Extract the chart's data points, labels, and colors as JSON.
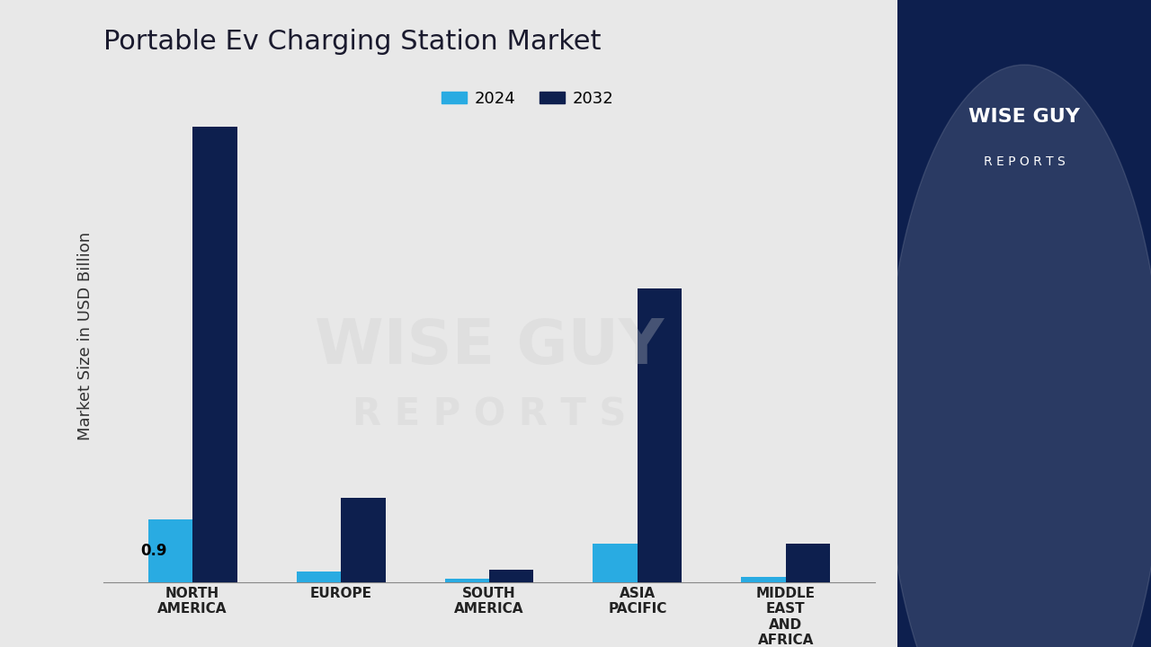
{
  "title": "Portable Ev Charging Station Market",
  "ylabel": "Market Size in USD Billion",
  "categories": [
    "NORTH\nAMERICA",
    "EUROPE",
    "SOUTH\nAMERICA",
    "ASIA\nPACIFIC",
    "MIDDLE\nEAST\nAND\nAFRICA"
  ],
  "series_2024": [
    0.9,
    0.15,
    0.05,
    0.55,
    0.08
  ],
  "series_2032": [
    6.5,
    1.2,
    0.18,
    4.2,
    0.55
  ],
  "color_2024": "#29ABE2",
  "color_2032": "#0D1F4E",
  "annotation_text": "0.9",
  "background_color": "#E8E8E8",
  "right_panel_color": "#0D1F4E",
  "title_color": "#1A1A2E",
  "legend_labels": [
    "2024",
    "2032"
  ],
  "bar_width": 0.3,
  "title_fontsize": 22,
  "axis_label_fontsize": 13,
  "tick_fontsize": 11,
  "legend_fontsize": 13
}
